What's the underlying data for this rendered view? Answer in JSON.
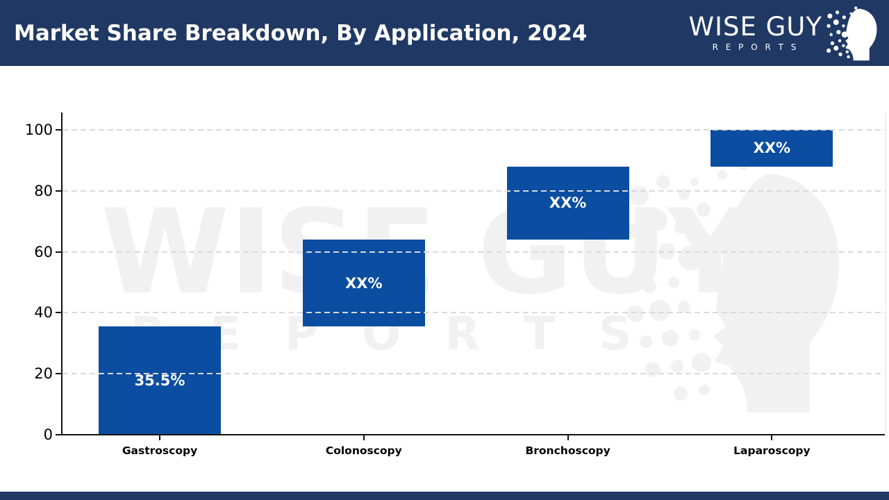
{
  "header": {
    "title": "Market Share Breakdown, By Application, 2024",
    "bg_color": "#1f3864"
  },
  "logo": {
    "line1": "WISE GUY",
    "line2": "R E P O R T S"
  },
  "watermark": {
    "line1": "WISE GUY",
    "line2": "R E P O R T S"
  },
  "chart_data": {
    "type": "bar",
    "variant": "floating-waterfall",
    "title": "Market Share Breakdown, By Application, 2024",
    "categories": [
      "Gastroscopy",
      "Colonoscopy",
      "Bronchoscopy",
      "Laparoscopy"
    ],
    "segments": [
      {
        "category": "Gastroscopy",
        "start": 0,
        "end": 35.5,
        "label": "35.5%"
      },
      {
        "category": "Colonoscopy",
        "start": 35.5,
        "end": 64,
        "label": "XX%"
      },
      {
        "category": "Bronchoscopy",
        "start": 64,
        "end": 88,
        "label": "XX%"
      },
      {
        "category": "Laparoscopy",
        "start": 88,
        "end": 100,
        "label": "XX%"
      }
    ],
    "ylim": [
      0,
      100
    ],
    "yticks": [
      0,
      20,
      40,
      60,
      80,
      100
    ],
    "xlabel": "",
    "ylabel": "",
    "grid": "dashed horizontal",
    "legend": false,
    "bar_color": "#0b4da1",
    "value_label_color": "#ffffff",
    "axis_color": "#111111",
    "gridline_color": "#d9d9d9"
  }
}
